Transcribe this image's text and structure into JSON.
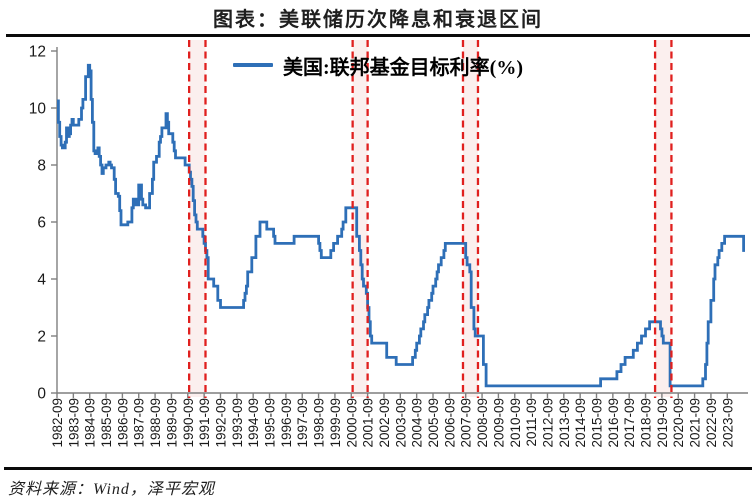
{
  "title": "图表：美联储历次降息和衰退区间",
  "legend": {
    "label": "美国:联邦基金目标利率(%)"
  },
  "source": "资料来源：Wind，泽平宏观",
  "colors": {
    "line": "#2E6FB7",
    "band_border": "#E0201F",
    "band_fill": "#FBEFEE",
    "axis": "#7F7F7F",
    "rule": "#0A0A0A",
    "text": "#1A1A1A"
  },
  "chart_data": {
    "type": "line",
    "title": "图表：美联储历次降息和衰退区间",
    "series_name": "美国:联邦基金目标利率(%)",
    "ylabel": "",
    "xlabel": "",
    "ylim": [
      0,
      12
    ],
    "yticks": [
      0,
      2,
      4,
      6,
      8,
      10,
      12
    ],
    "grid": false,
    "legend_position": "top-center",
    "x_range": [
      "1982-09",
      "2024-10"
    ],
    "xtick_labels": [
      "1982-09",
      "1983-09",
      "1984-09",
      "1985-09",
      "1986-09",
      "1987-09",
      "1988-09",
      "1989-09",
      "1990-09",
      "1991-09",
      "1992-09",
      "1993-09",
      "1994-09",
      "1995-09",
      "1996-09",
      "1997-09",
      "1998-09",
      "1999-09",
      "2000-09",
      "2001-09",
      "2002-09",
      "2003-09",
      "2004-09",
      "2005-09",
      "2006-09",
      "2007-09",
      "2008-09",
      "2009-09",
      "2010-09",
      "2011-09",
      "2012-09",
      "2013-09",
      "2014-09",
      "2015-09",
      "2016-09",
      "2017-09",
      "2018-09",
      "2019-09",
      "2020-09",
      "2021-09",
      "2022-09",
      "2023-09"
    ],
    "recession_bands": [
      [
        "1990-10",
        "1991-10"
      ],
      [
        "2000-10",
        "2001-09"
      ],
      [
        "2007-07",
        "2008-06"
      ],
      [
        "2019-04",
        "2020-04"
      ]
    ],
    "points": [
      [
        "1982-09",
        10.25
      ],
      [
        "1982-10",
        9.5
      ],
      [
        "1982-11",
        9.0
      ],
      [
        "1982-12",
        8.7
      ],
      [
        "1983-01",
        8.6
      ],
      [
        "1983-03",
        8.8
      ],
      [
        "1983-04",
        9.3
      ],
      [
        "1983-05",
        9.0
      ],
      [
        "1983-06",
        9.1
      ],
      [
        "1983-07",
        9.4
      ],
      [
        "1983-08",
        9.6
      ],
      [
        "1983-09",
        9.4
      ],
      [
        "1984-01",
        9.6
      ],
      [
        "1984-03",
        10.0
      ],
      [
        "1984-04",
        10.3
      ],
      [
        "1984-06",
        11.1
      ],
      [
        "1984-08",
        11.5
      ],
      [
        "1984-09",
        11.3
      ],
      [
        "1984-10",
        10.3
      ],
      [
        "1984-11",
        9.5
      ],
      [
        "1984-12",
        8.5
      ],
      [
        "1985-01",
        8.4
      ],
      [
        "1985-02",
        8.5
      ],
      [
        "1985-03",
        8.6
      ],
      [
        "1985-04",
        8.3
      ],
      [
        "1985-05",
        8.0
      ],
      [
        "1985-06",
        7.7
      ],
      [
        "1985-07",
        7.9
      ],
      [
        "1985-09",
        8.0
      ],
      [
        "1985-11",
        8.1
      ],
      [
        "1985-12",
        8.0
      ],
      [
        "1986-01",
        7.9
      ],
      [
        "1986-03",
        7.5
      ],
      [
        "1986-04",
        7.0
      ],
      [
        "1986-06",
        6.9
      ],
      [
        "1986-07",
        6.4
      ],
      [
        "1986-08",
        5.9
      ],
      [
        "1987-01",
        6.0
      ],
      [
        "1987-04",
        6.5
      ],
      [
        "1987-05",
        6.8
      ],
      [
        "1987-07",
        6.6
      ],
      [
        "1987-09",
        7.3
      ],
      [
        "1987-11",
        6.8
      ],
      [
        "1987-12",
        6.6
      ],
      [
        "1988-02",
        6.5
      ],
      [
        "1988-05",
        7.0
      ],
      [
        "1988-07",
        7.5
      ],
      [
        "1988-08",
        8.1
      ],
      [
        "1988-10",
        8.3
      ],
      [
        "1988-12",
        8.8
      ],
      [
        "1989-01",
        9.0
      ],
      [
        "1989-02",
        9.3
      ],
      [
        "1989-05",
        9.8
      ],
      [
        "1989-06",
        9.5
      ],
      [
        "1989-07",
        9.1
      ],
      [
        "1989-10",
        8.8
      ],
      [
        "1989-11",
        8.5
      ],
      [
        "1989-12",
        8.25
      ],
      [
        "1990-07",
        8.0
      ],
      [
        "1990-10",
        7.75
      ],
      [
        "1990-11",
        7.5
      ],
      [
        "1990-12",
        7.25
      ],
      [
        "1991-01",
        6.75
      ],
      [
        "1991-02",
        6.25
      ],
      [
        "1991-03",
        6.0
      ],
      [
        "1991-04",
        5.75
      ],
      [
        "1991-08",
        5.5
      ],
      [
        "1991-09",
        5.25
      ],
      [
        "1991-10",
        5.0
      ],
      [
        "1991-11",
        4.75
      ],
      [
        "1991-12",
        4.0
      ],
      [
        "1992-04",
        3.75
      ],
      [
        "1992-07",
        3.25
      ],
      [
        "1992-09",
        3.0
      ],
      [
        "1994-02",
        3.25
      ],
      [
        "1994-03",
        3.5
      ],
      [
        "1994-04",
        3.75
      ],
      [
        "1994-05",
        4.25
      ],
      [
        "1994-08",
        4.75
      ],
      [
        "1994-11",
        5.5
      ],
      [
        "1995-02",
        6.0
      ],
      [
        "1995-07",
        5.75
      ],
      [
        "1995-12",
        5.5
      ],
      [
        "1996-01",
        5.25
      ],
      [
        "1997-03",
        5.5
      ],
      [
        "1998-09",
        5.25
      ],
      [
        "1998-10",
        5.0
      ],
      [
        "1998-11",
        4.75
      ],
      [
        "1999-06",
        5.0
      ],
      [
        "1999-08",
        5.25
      ],
      [
        "1999-11",
        5.5
      ],
      [
        "2000-02",
        5.75
      ],
      [
        "2000-03",
        6.0
      ],
      [
        "2000-05",
        6.5
      ],
      [
        "2001-01",
        5.5
      ],
      [
        "2001-03",
        5.0
      ],
      [
        "2001-04",
        4.5
      ],
      [
        "2001-05",
        4.0
      ],
      [
        "2001-06",
        3.75
      ],
      [
        "2001-08",
        3.5
      ],
      [
        "2001-09",
        3.0
      ],
      [
        "2001-10",
        2.5
      ],
      [
        "2001-11",
        2.0
      ],
      [
        "2001-12",
        1.75
      ],
      [
        "2002-11",
        1.25
      ],
      [
        "2003-06",
        1.0
      ],
      [
        "2004-06",
        1.25
      ],
      [
        "2004-08",
        1.5
      ],
      [
        "2004-09",
        1.75
      ],
      [
        "2004-11",
        2.0
      ],
      [
        "2004-12",
        2.25
      ],
      [
        "2005-02",
        2.5
      ],
      [
        "2005-03",
        2.75
      ],
      [
        "2005-05",
        3.0
      ],
      [
        "2005-06",
        3.25
      ],
      [
        "2005-08",
        3.5
      ],
      [
        "2005-09",
        3.75
      ],
      [
        "2005-11",
        4.0
      ],
      [
        "2005-12",
        4.25
      ],
      [
        "2006-01",
        4.5
      ],
      [
        "2006-03",
        4.75
      ],
      [
        "2006-05",
        5.0
      ],
      [
        "2006-06",
        5.25
      ],
      [
        "2007-09",
        4.75
      ],
      [
        "2007-10",
        4.5
      ],
      [
        "2007-12",
        4.25
      ],
      [
        "2008-01",
        3.0
      ],
      [
        "2008-03",
        2.25
      ],
      [
        "2008-04",
        2.0
      ],
      [
        "2008-10",
        1.0
      ],
      [
        "2008-12",
        0.25
      ],
      [
        "2015-12",
        0.5
      ],
      [
        "2016-12",
        0.75
      ],
      [
        "2017-03",
        1.0
      ],
      [
        "2017-06",
        1.25
      ],
      [
        "2017-12",
        1.5
      ],
      [
        "2018-03",
        1.75
      ],
      [
        "2018-06",
        2.0
      ],
      [
        "2018-09",
        2.25
      ],
      [
        "2018-12",
        2.5
      ],
      [
        "2019-08",
        2.25
      ],
      [
        "2019-09",
        2.0
      ],
      [
        "2019-10",
        1.75
      ],
      [
        "2020-03",
        0.25
      ],
      [
        "2022-03",
        0.5
      ],
      [
        "2022-05",
        1.0
      ],
      [
        "2022-06",
        1.75
      ],
      [
        "2022-07",
        2.5
      ],
      [
        "2022-09",
        3.25
      ],
      [
        "2022-11",
        4.0
      ],
      [
        "2022-12",
        4.5
      ],
      [
        "2023-02",
        4.75
      ],
      [
        "2023-03",
        5.0
      ],
      [
        "2023-05",
        5.25
      ],
      [
        "2023-07",
        5.5
      ],
      [
        "2024-09",
        5.0
      ]
    ]
  }
}
